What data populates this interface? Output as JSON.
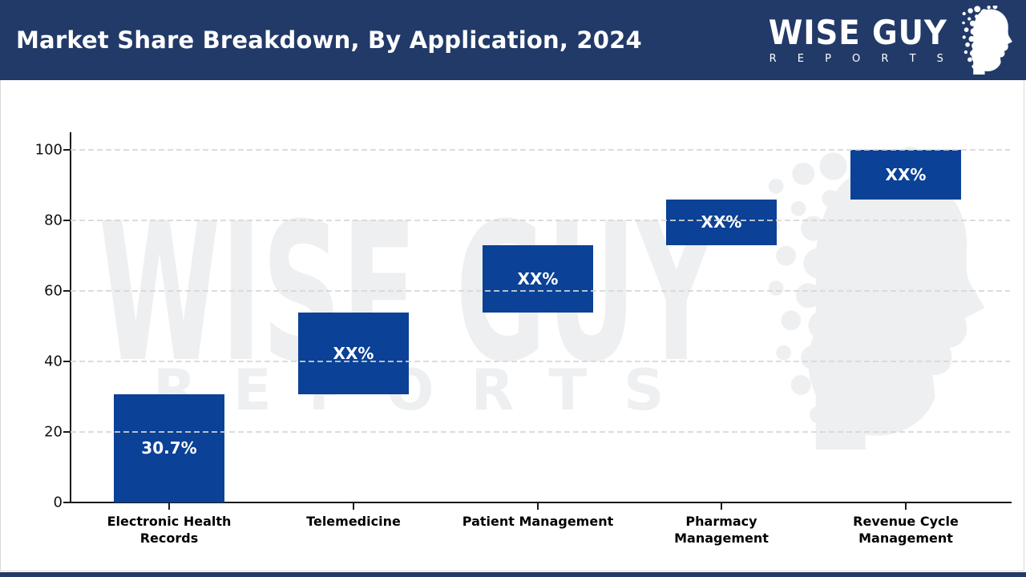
{
  "header": {
    "title": "Market Share Breakdown, By Application, 2024",
    "logo": {
      "line1": "WISE GUY",
      "line2": "R E P O R T S"
    }
  },
  "watermark": {
    "line1": "WISE GUY",
    "line2": "REPORTS"
  },
  "colors": {
    "header_bg": "#223A68",
    "footer_bg": "#223A68",
    "bar": "#0B4196",
    "bar_label": "#FFFFFF",
    "axis": "#1A1A1A",
    "grid": "#D6D6D6",
    "watermark": "#EEEFF1"
  },
  "chart_data": {
    "type": "bar",
    "subtype": "floating-waterfall",
    "title": "Market Share Breakdown, By Application, 2024",
    "unit": "percent",
    "ylim": [
      0,
      100
    ],
    "yticks": [
      0,
      20,
      40,
      60,
      80,
      100
    ],
    "grid": "horizontal-dashed",
    "legend": "none",
    "xlabel": "",
    "ylabel": "",
    "categories": [
      "Electronic Health Records",
      "Telemedicine",
      "Patient Management",
      "Pharmacy Management",
      "Revenue Cycle Management"
    ],
    "bars": [
      {
        "category": "Electronic Health Records",
        "tick_lines": [
          "Electronic Health",
          "Records"
        ],
        "start": 0,
        "end": 30.7,
        "label": "30.7%"
      },
      {
        "category": "Telemedicine",
        "tick_lines": [
          "Telemedicine"
        ],
        "start": 30.7,
        "end": 53.8,
        "label": "XX%"
      },
      {
        "category": "Patient Management",
        "tick_lines": [
          "Patient Management"
        ],
        "start": 53.8,
        "end": 72.9,
        "label": "XX%"
      },
      {
        "category": "Pharmacy Management",
        "tick_lines": [
          "Pharmacy",
          "Management"
        ],
        "start": 72.9,
        "end": 85.9,
        "label": "XX%"
      },
      {
        "category": "Revenue Cycle Management",
        "tick_lines": [
          "Revenue Cycle",
          "Management"
        ],
        "start": 85.9,
        "end": 100,
        "label": "XX%"
      }
    ]
  }
}
